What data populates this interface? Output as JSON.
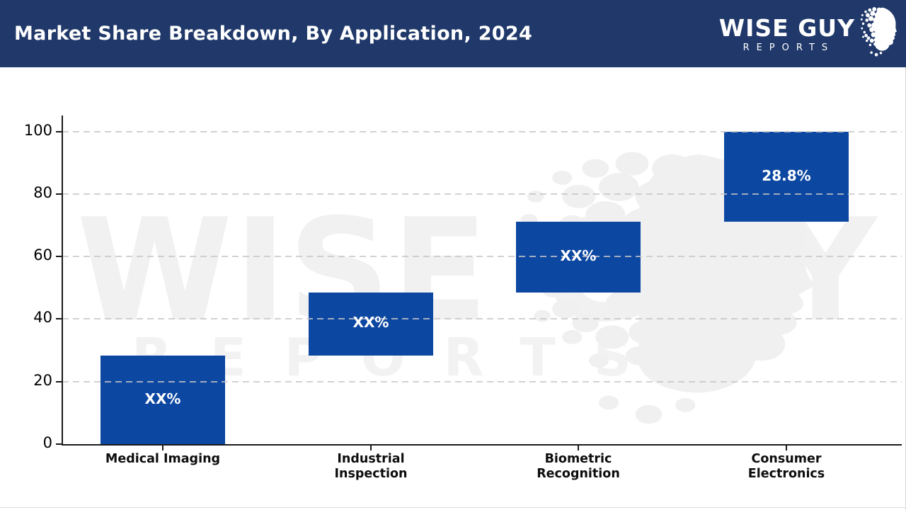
{
  "header": {
    "title": "Market Share Breakdown, By Application, 2024",
    "background_color": "#20396a",
    "brand": {
      "line1": "WISE GUY",
      "line2": "REPORTS"
    }
  },
  "watermark": {
    "line1": "WISE GUY",
    "line2": "REPORTS"
  },
  "chart_data": {
    "type": "bar",
    "subtype": "waterfall",
    "title": "Market Share Breakdown, By Application, 2024",
    "categories": [
      "Medical Imaging",
      "Industrial\nInspection",
      "Biometric\nRecognition",
      "Consumer\nElectronics"
    ],
    "segments": [
      {
        "category": "Medical Imaging",
        "start": 0,
        "end": 28.3,
        "label": "XX%"
      },
      {
        "category": "Industrial\nInspection",
        "start": 28.3,
        "end": 48.5,
        "label": "XX%"
      },
      {
        "category": "Biometric\nRecognition",
        "start": 48.5,
        "end": 71.1,
        "label": "XX%"
      },
      {
        "category": "Consumer\nElectronics",
        "start": 71.1,
        "end": 99.9,
        "label": "28.8%",
        "value": 28.8
      }
    ],
    "xlabel": "",
    "ylabel": "",
    "ylim": [
      0,
      105
    ],
    "yticks": [
      0,
      20,
      40,
      60,
      80,
      100
    ],
    "grid": "horizontal-dashed",
    "legend": "none",
    "bar_color": "#0c47a1",
    "bar_label_color": "#ffffff",
    "axis_color": "#1a1a1a"
  }
}
